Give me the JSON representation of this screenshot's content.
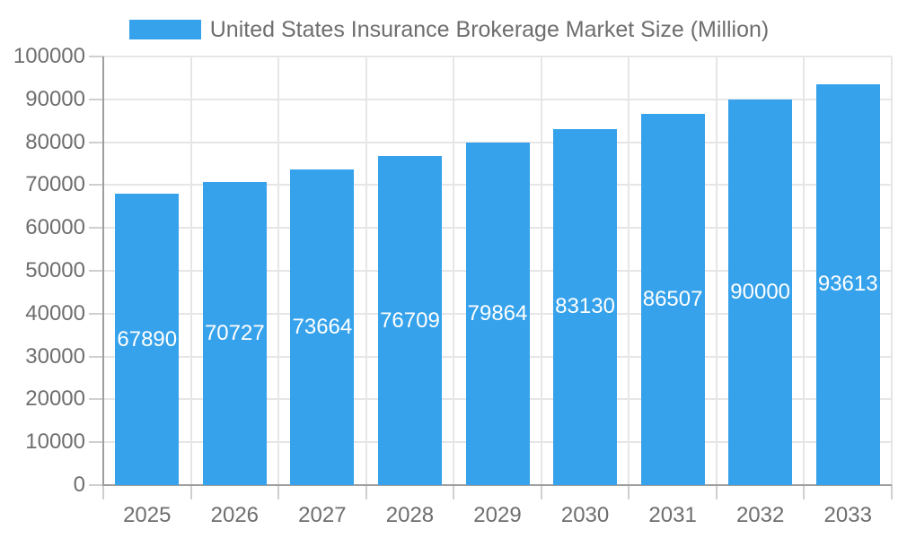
{
  "legend": {
    "label": "United States Insurance Brokerage Market Size (Million)"
  },
  "colors": {
    "bar": "#36A2EB",
    "grid": "#e6e6e6",
    "axis": "#9e9e9e",
    "tick": "#cfcfcf",
    "text": "#6e6e6e",
    "value_label": "#ffffff",
    "background": "#ffffff"
  },
  "chart_data": {
    "type": "bar",
    "title": "United States Insurance Brokerage Market Size (Million)",
    "categories": [
      "2025",
      "2026",
      "2027",
      "2028",
      "2029",
      "2030",
      "2031",
      "2032",
      "2033"
    ],
    "values": [
      67890,
      70727,
      73664,
      76709,
      79864,
      83130,
      86507,
      90000,
      93613
    ],
    "xlabel": "",
    "ylabel": "",
    "ylim": [
      0,
      100000
    ],
    "ytick_step": 10000,
    "ytick_labels": [
      "0",
      "10000",
      "20000",
      "30000",
      "40000",
      "50000",
      "60000",
      "70000",
      "80000",
      "90000",
      "100000"
    ],
    "grid": true,
    "legend_position": "top",
    "value_label_position": "inside-center"
  }
}
